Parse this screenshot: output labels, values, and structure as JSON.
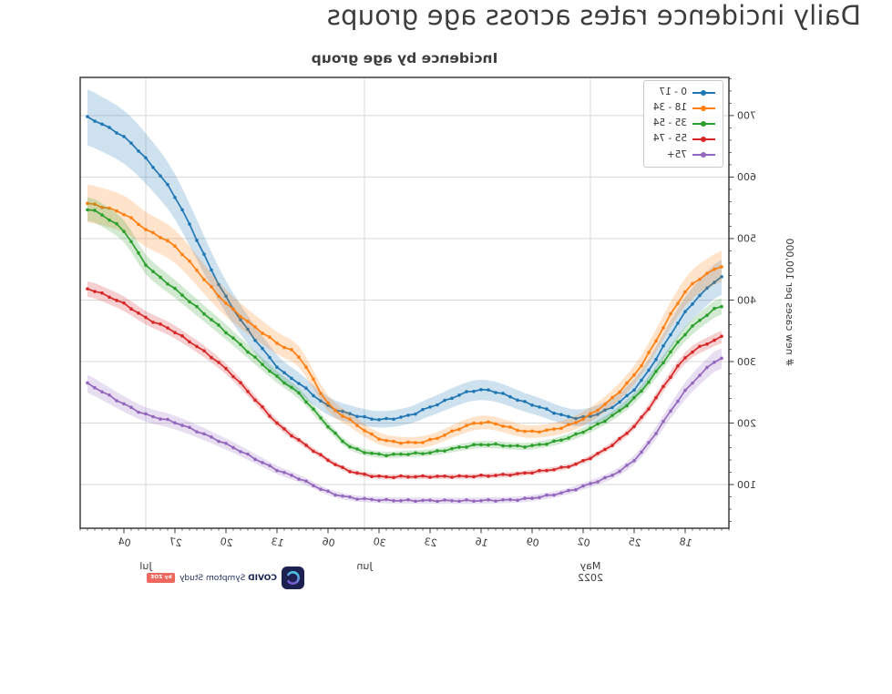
{
  "header": {
    "title": "Daily incidence rates across age groups"
  },
  "branding": {
    "app_bold": "COVID",
    "app_rest": "Symptom Study",
    "badge": "by ZOE"
  },
  "display": {
    "mirrored_horizontally": true
  },
  "chart_data": {
    "type": "line",
    "title": "Incidence by age group",
    "ylabel": "# new cases per 100,000",
    "grid": {
      "horizontal": true,
      "vertical_at_month_starts": true
    },
    "legend_position": "upper-left",
    "x_axis": {
      "start_date": "2022-04-12",
      "end_date": "2022-07-10",
      "major_ticks": [
        {
          "day": 6,
          "label": "18"
        },
        {
          "day": 13,
          "label": "25"
        },
        {
          "day": 20,
          "label": "02"
        },
        {
          "day": 27,
          "label": "09"
        },
        {
          "day": 34,
          "label": "16"
        },
        {
          "day": 41,
          "label": "23"
        },
        {
          "day": 48,
          "label": "30"
        },
        {
          "day": 55,
          "label": "06"
        },
        {
          "day": 62,
          "label": "13"
        },
        {
          "day": 69,
          "label": "20"
        },
        {
          "day": 76,
          "label": "27"
        },
        {
          "day": 83,
          "label": "04"
        }
      ],
      "month_marks": [
        {
          "day": 19,
          "label": "May",
          "sublabel": "2022"
        },
        {
          "day": 50,
          "label": "Jun",
          "sublabel": ""
        },
        {
          "day": 80,
          "label": "Jul",
          "sublabel": ""
        }
      ]
    },
    "y_axis": {
      "ticks": [
        100,
        200,
        300,
        400,
        500,
        600,
        700
      ],
      "lim": [
        29,
        762
      ],
      "minor_step": 20
    },
    "anchor_days": [
      1,
      2,
      6,
      13,
      20,
      27,
      34,
      41,
      44,
      48,
      52,
      55,
      59,
      62,
      69,
      76,
      80,
      83,
      87,
      88
    ],
    "series": [
      {
        "name": "0 - 17",
        "color": "#1f77b4",
        "band_frac": 0.065,
        "band_min": 8,
        "values": [
          437,
          430,
          380,
          255,
          209,
          230,
          254,
          226,
          212,
          206,
          215,
          228,
          265,
          292,
          405,
          568,
          630,
          665,
          692,
          697
        ]
      },
      {
        "name": "18 - 34",
        "color": "#ff7f0e",
        "band_frac": 0.055,
        "band_min": 9,
        "values": [
          455,
          450,
          413,
          278,
          207,
          186,
          201,
          172,
          168,
          175,
          205,
          232,
          308,
          330,
          395,
          487,
          515,
          540,
          555,
          557
        ]
      },
      {
        "name": "35 - 54",
        "color": "#2ca02c",
        "band_frac": 0.035,
        "band_min": 5,
        "values": [
          390,
          385,
          345,
          240,
          186,
          163,
          165,
          152,
          150,
          149,
          162,
          195,
          248,
          275,
          348,
          418,
          458,
          512,
          545,
          548
        ]
      },
      {
        "name": "55 - 74",
        "color": "#d62728",
        "band_frac": 0.03,
        "band_min": 4,
        "values": [
          340,
          335,
          306,
          195,
          138,
          120,
          114,
          113,
          113,
          113,
          122,
          140,
          172,
          200,
          288,
          348,
          371,
          394,
          415,
          418
        ]
      },
      {
        "name": "75+",
        "color": "#9467bd",
        "band_frac": 0.055,
        "band_min": 5,
        "values": [
          305,
          300,
          252,
          140,
          97,
          78,
          74,
          74,
          74,
          75,
          79,
          88,
          110,
          124,
          166,
          201,
          214,
          231,
          258,
          264
        ]
      }
    ]
  }
}
